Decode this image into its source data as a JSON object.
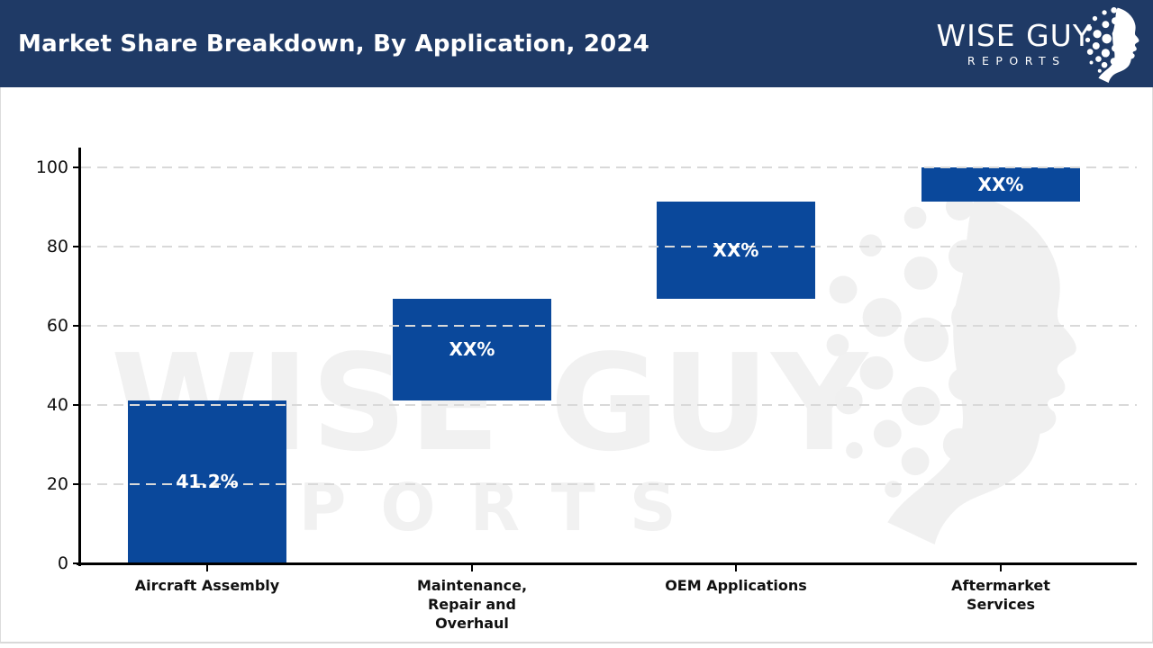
{
  "header": {
    "title": "Market Share Breakdown, By Application, 2024",
    "logo": {
      "name": "WISE GUY",
      "sub": "REPORTS"
    }
  },
  "colors": {
    "header_bg": "#1f3a66",
    "bar": "#0a489b",
    "gridline": "#d9d9d9",
    "watermark": "#f1f1f1",
    "bar_label_text": "#ffffff"
  },
  "watermark": {
    "line1": "WISE GUY",
    "line2": "REPORTS"
  },
  "chart_data": {
    "type": "bar",
    "subtype": "waterfall",
    "title": "Market Share Breakdown, By Application, 2024",
    "xlabel": "",
    "ylabel": "",
    "ylim": [
      0,
      105
    ],
    "y_ticks": [
      0,
      20,
      40,
      60,
      80,
      100
    ],
    "grid": "horizontal-dashed",
    "legend": "none",
    "categories": [
      "Aircraft Assembly",
      "Maintenance, Repair and Overhaul",
      "OEM Applications",
      "Aftermarket Services"
    ],
    "categories_wrapped": [
      [
        "Aircraft Assembly"
      ],
      [
        "Maintenance,",
        "Repair and",
        "Overhaul"
      ],
      [
        "OEM Applications"
      ],
      [
        "Aftermarket",
        "Services"
      ]
    ],
    "segments": [
      {
        "category": "Aircraft Assembly",
        "start": 0,
        "end": 41.2,
        "label": "41.2%"
      },
      {
        "category": "Maintenance, Repair and Overhaul",
        "start": 41.2,
        "end": 66.8,
        "label": "XX%"
      },
      {
        "category": "OEM Applications",
        "start": 66.8,
        "end": 91.4,
        "label": "XX%"
      },
      {
        "category": "Aftermarket Services",
        "start": 91.4,
        "end": 100,
        "label": "XX%"
      }
    ]
  }
}
